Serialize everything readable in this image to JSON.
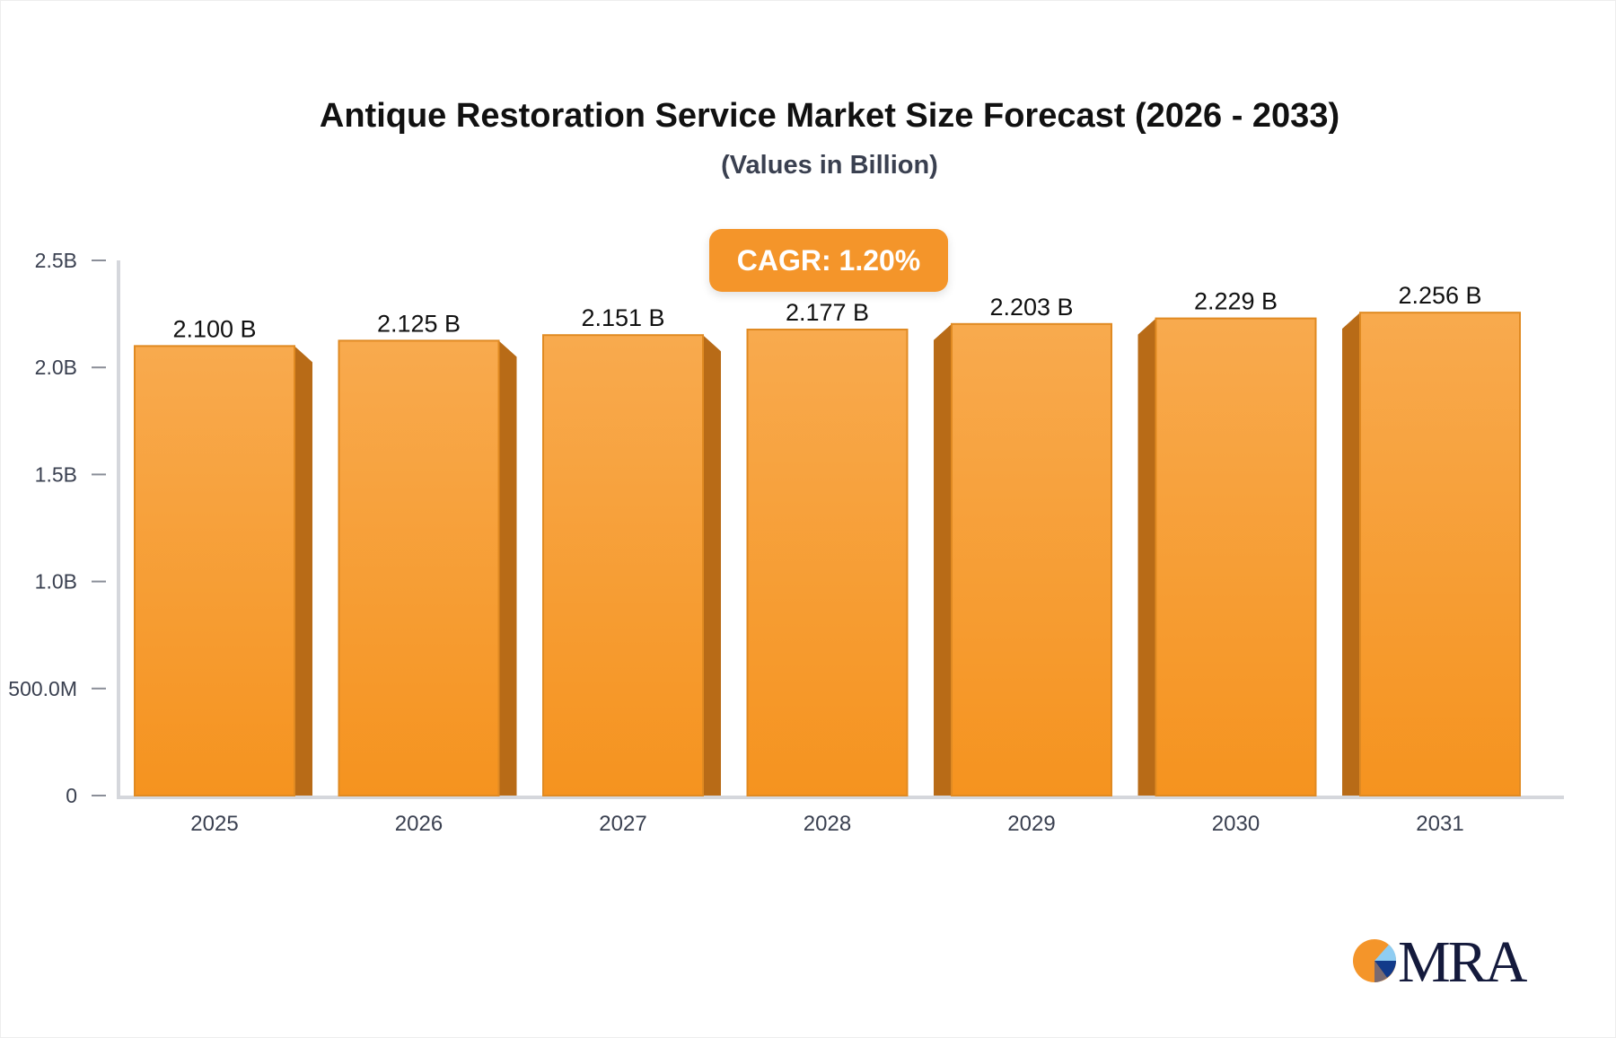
{
  "chart_data": {
    "type": "bar",
    "title": "Antique Restoration Service Market Size Forecast (2026 - 2033)",
    "subtitle": "(Values in Billion)",
    "categories": [
      "2025",
      "2026",
      "2027",
      "2028",
      "2029",
      "2030",
      "2031"
    ],
    "values": [
      2.1,
      2.125,
      2.151,
      2.177,
      2.203,
      2.229,
      2.256
    ],
    "data_labels": [
      "2.100 B",
      "2.125 B",
      "2.151 B",
      "2.177 B",
      "2.203 B",
      "2.229 B",
      "2.256 B"
    ],
    "y_ticks": [
      {
        "value": 0,
        "label": "0"
      },
      {
        "value": 0.5,
        "label": "500.0M"
      },
      {
        "value": 1.0,
        "label": "1.0B"
      },
      {
        "value": 1.5,
        "label": "1.5B"
      },
      {
        "value": 2.0,
        "label": "2.0B"
      },
      {
        "value": 2.5,
        "label": "2.5B"
      }
    ],
    "ylim": [
      0,
      2.5
    ],
    "xlabel": "",
    "ylabel": "",
    "grid": false,
    "annotation": "CAGR: 1.20%",
    "colors": {
      "bar_top": "#f8aa4e",
      "bar_bottom": "#f5931f",
      "bar_side": "#b86b17",
      "axis": "#d5d7dc"
    }
  },
  "logo": {
    "text": "MRA"
  }
}
